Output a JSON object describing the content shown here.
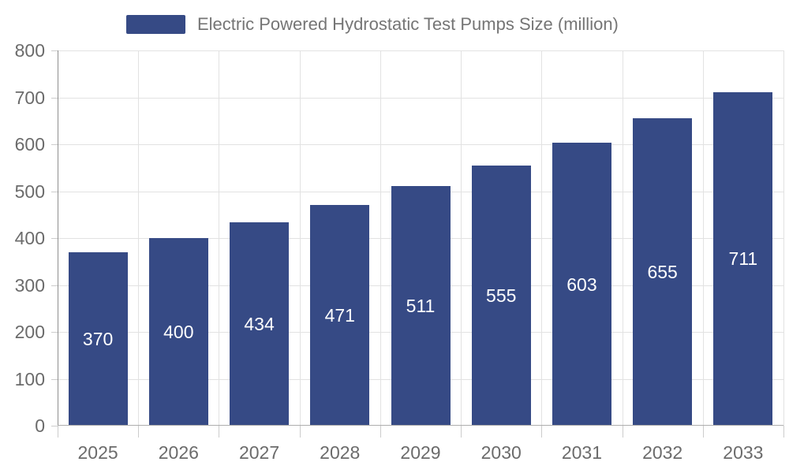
{
  "legend": {
    "label": "Electric Powered Hydrostatic Test Pumps Size (million)"
  },
  "colors": {
    "bar": "#364a85",
    "bar_label": "#ffffff",
    "legend_text": "#757575",
    "axis_text": "#6b6b6b",
    "grid_line": "#e2e2e2",
    "y_axis_line": "#8f8f8f",
    "x_axis_line": "#adadad",
    "tick": "#cccccc"
  },
  "chart_data": {
    "type": "bar",
    "title": "Electric Powered Hydrostatic Test Pumps Size (million)",
    "categories": [
      "2025",
      "2026",
      "2027",
      "2028",
      "2029",
      "2030",
      "2031",
      "2032",
      "2033"
    ],
    "values": [
      370,
      400,
      434,
      471,
      511,
      555,
      603,
      655,
      711
    ],
    "series": [
      {
        "name": "Electric Powered Hydrostatic Test Pumps Size (million)",
        "values": [
          370,
          400,
          434,
          471,
          511,
          555,
          603,
          655,
          711
        ]
      }
    ],
    "xlabel": "",
    "ylabel": "",
    "ylim": [
      0,
      800
    ],
    "ytick_step": 100,
    "yticks": [
      0,
      100,
      200,
      300,
      400,
      500,
      600,
      700,
      800
    ],
    "grid": true,
    "legend_position": "top",
    "value_labels": "inside-center"
  }
}
